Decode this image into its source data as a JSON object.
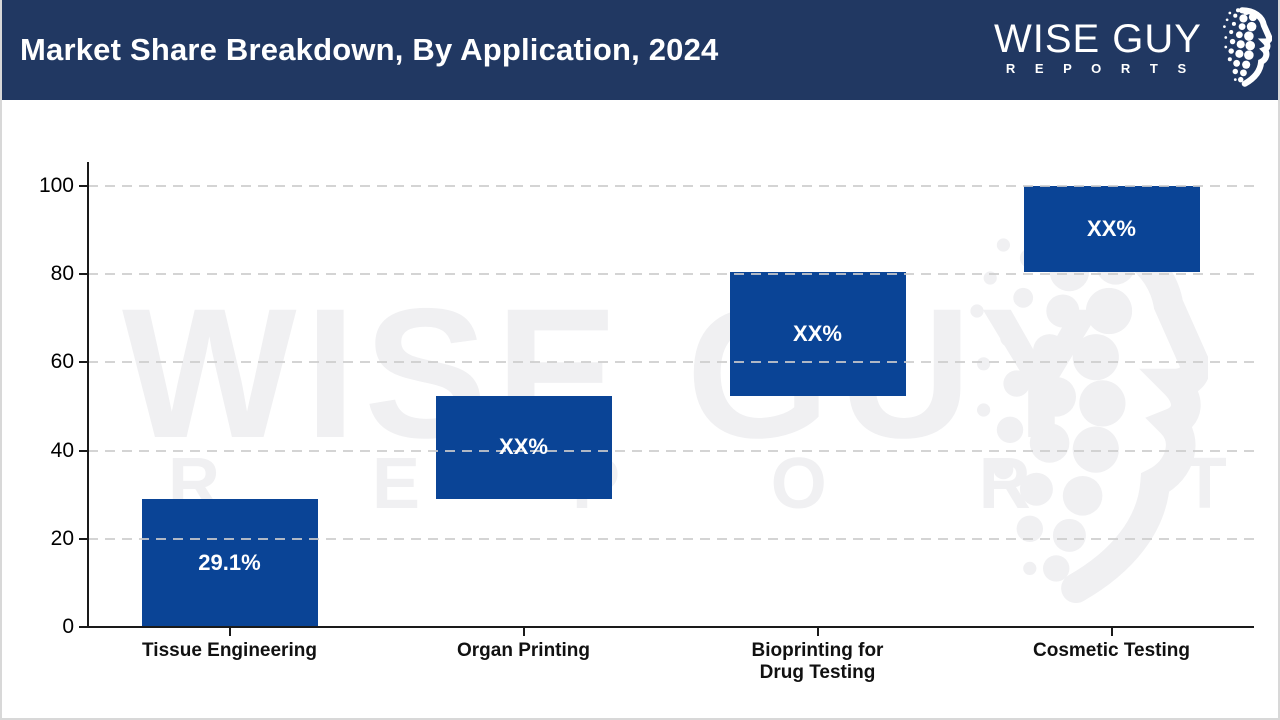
{
  "header": {
    "title": "Market Share Breakdown, By Application, 2024",
    "logo": {
      "line1": "WISE GUY",
      "line2": "R E P O R T S"
    }
  },
  "watermark": {
    "line1": "WISE GUY",
    "line2": "R E P O R T S"
  },
  "chart_data": {
    "type": "bar",
    "subtype": "waterfall",
    "title": "Market Share Breakdown, By Application, 2024",
    "categories": [
      "Tissue Engineering",
      "Organ Printing",
      "Bioprinting for Drug Testing",
      "Cosmetic Testing"
    ],
    "tick_labels": [
      "Tissue Engineering",
      "Organ Printing",
      "Bioprinting for\nDrug Testing",
      "Cosmetic Testing"
    ],
    "series": [
      {
        "name": "Market share",
        "segments": [
          {
            "category": "Tissue Engineering",
            "start": 0,
            "end": 29.1,
            "label": "29.1%"
          },
          {
            "category": "Organ Printing",
            "start": 29.1,
            "end": 52.4,
            "label": "XX%"
          },
          {
            "category": "Bioprinting for Drug Testing",
            "start": 52.4,
            "end": 80.5,
            "label": "XX%"
          },
          {
            "category": "Cosmetic Testing",
            "start": 80.5,
            "end": 100,
            "label": "XX%"
          }
        ]
      }
    ],
    "yticks": [
      0,
      20,
      40,
      60,
      80,
      100
    ],
    "ylim": [
      0,
      105
    ],
    "grid": "horizontal-dashed",
    "legend": "none"
  },
  "colors": {
    "header_bg": "#213862",
    "bar": "#0a4496",
    "axis": "#1a1a1a",
    "grid": "#cdcdcd",
    "bar_label_text": "#ffffff",
    "watermark": "#f0f0f2"
  }
}
